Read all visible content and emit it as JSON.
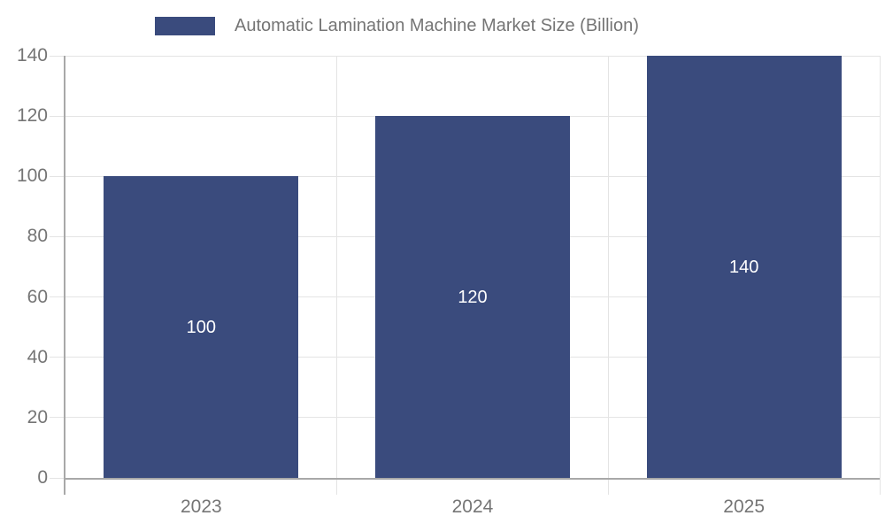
{
  "chart_data": {
    "type": "bar",
    "title": "Automatic Lamination Machine Market Size (Billion)",
    "legend": [
      "Automatic Lamination Machine Market Size (Billion)"
    ],
    "legend_position": "top",
    "categories": [
      "2023",
      "2024",
      "2025"
    ],
    "values": [
      100,
      120,
      140
    ],
    "bar_labels": [
      "100",
      "120",
      "140"
    ],
    "xlabel": "",
    "ylabel": "",
    "ylim": [
      0,
      140
    ],
    "y_ticks": [
      0,
      20,
      40,
      60,
      80,
      100,
      120,
      140
    ],
    "grid": true,
    "colors": {
      "bar": "#3A4B7D",
      "grid": "#E4E4E4",
      "axis": "#A8A8A8",
      "tick_text": "#757575",
      "legend_text": "#757575",
      "bar_label_text": "#FFFFFF",
      "background": "#FFFFFF"
    }
  }
}
